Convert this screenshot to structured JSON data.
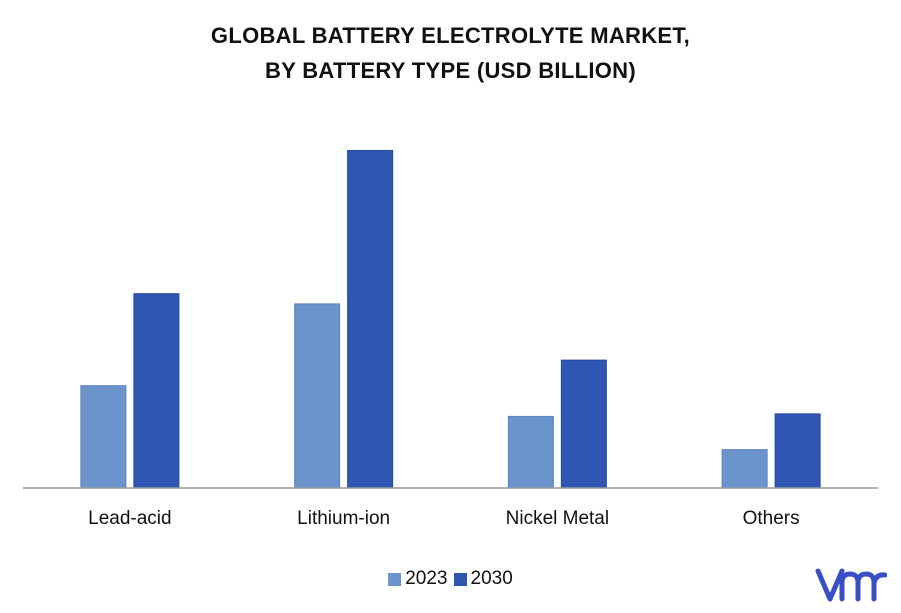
{
  "title": {
    "line1": "GLOBAL BATTERY ELECTROLYTE MARKET,",
    "line2": "BY BATTERY TYPE (USD BILLION)"
  },
  "colors": {
    "series_2023": "#6b93cc",
    "series_2030": "#2f56b0",
    "axis": "#999999",
    "logo": "#3a4fc4"
  },
  "logo_text": "vmr",
  "chart_data": {
    "type": "bar",
    "title": "GLOBAL BATTERY ELECTROLYTE MARKET, BY BATTERY TYPE (USD BILLION)",
    "categories": [
      "Lead-acid",
      "Lithium-ion",
      "Nickel Metal",
      "Others"
    ],
    "series": [
      {
        "name": "2023",
        "values": [
          2.0,
          3.6,
          1.4,
          0.75
        ]
      },
      {
        "name": "2030",
        "values": [
          3.8,
          6.6,
          2.5,
          1.45
        ]
      }
    ],
    "ylim": [
      0,
      7
    ],
    "grid": false,
    "legend": "bottom-center",
    "xlabel": "",
    "ylabel": ""
  }
}
